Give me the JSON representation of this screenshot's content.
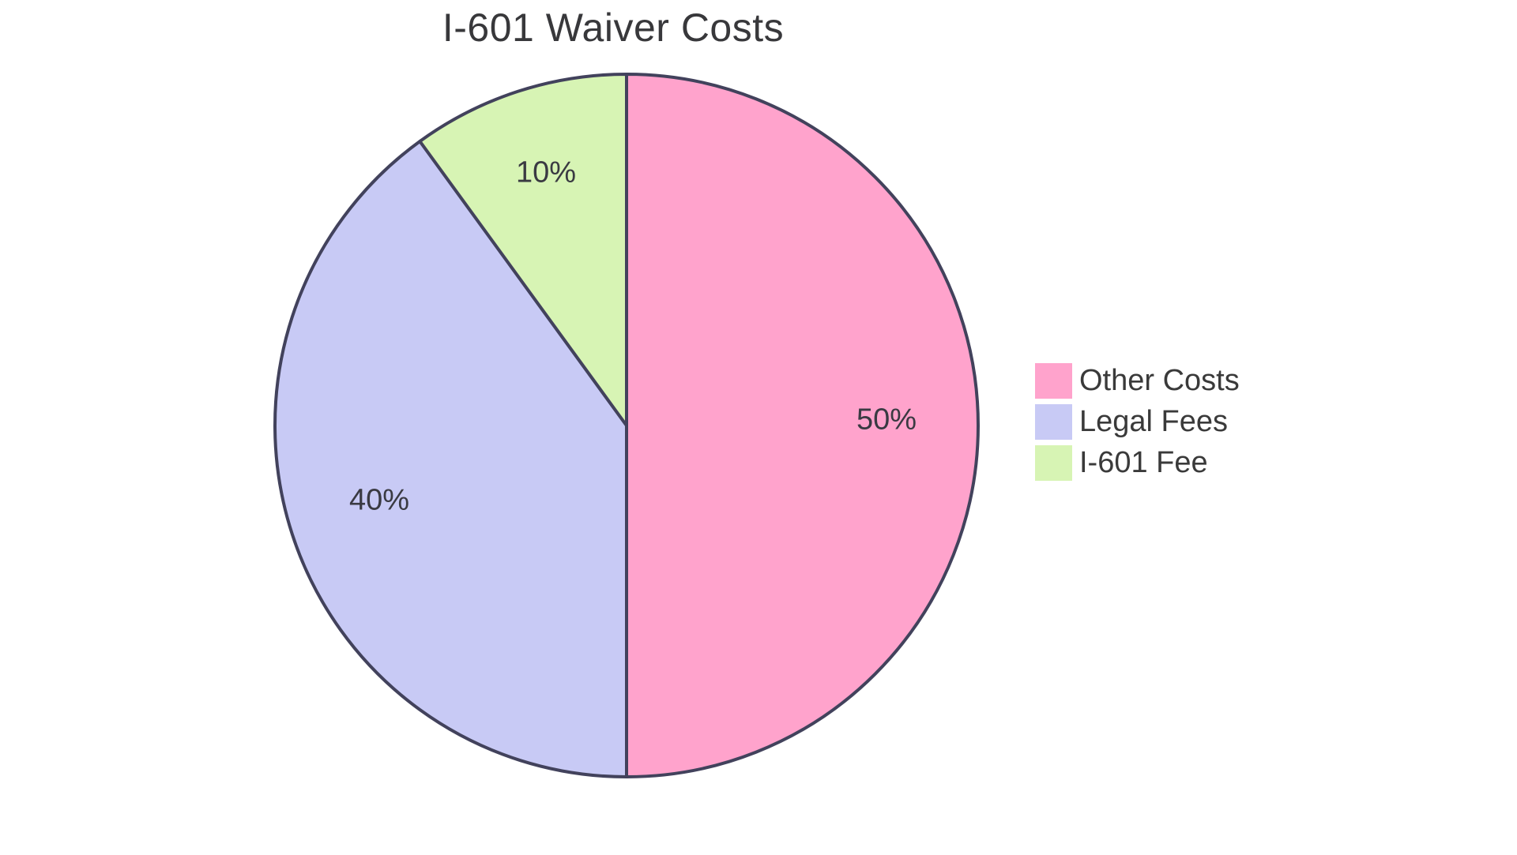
{
  "chart_data": {
    "type": "pie",
    "title": "I-601 Waiver Costs",
    "slices": [
      {
        "name": "Other Costs",
        "value": 50,
        "label": "50%",
        "color": "#FFA3CC"
      },
      {
        "name": "Legal Fees",
        "value": 40,
        "label": "40%",
        "color": "#C8CAF5"
      },
      {
        "name": "I-601 Fee",
        "value": 10,
        "label": "10%",
        "color": "#D7F4B4"
      }
    ],
    "start_angle": "12 o'clock",
    "direction": "clockwise",
    "stroke_color": "#42425C",
    "stroke_width": 4,
    "legend_position": "right",
    "background_color": "#FFFFFF",
    "title_color": "#38383B",
    "label_color": "#3A3A42"
  }
}
